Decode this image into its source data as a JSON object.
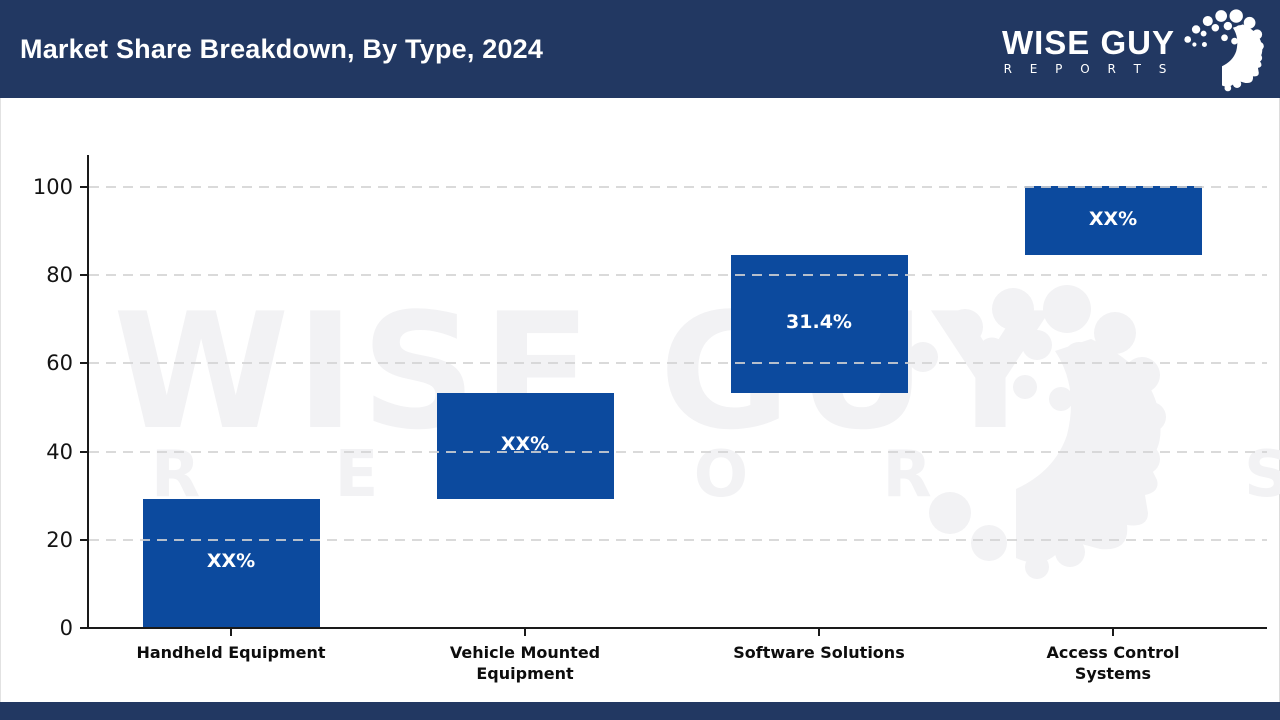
{
  "header": {
    "title": "Market Share Breakdown, By Type, 2024",
    "bg_color": "#223862",
    "logo": {
      "wordmark": "WISE GUY",
      "subtext": "R E P O R T S",
      "icon": "dotted-head-profile"
    }
  },
  "watermark": {
    "wordmark": "WISE GUY",
    "subtext": "R E P O R T S"
  },
  "footer": {
    "bg_color": "#223862"
  },
  "chart_data": {
    "type": "waterfall",
    "title": "Market Share Breakdown, By Type, 2024",
    "xlabel": "",
    "ylabel": "",
    "ylim": [
      0,
      107
    ],
    "grid": true,
    "grid_style": "dashed",
    "bar_color": "#0c4a9e",
    "bar_label_color": "#ffffff",
    "axis_color": "#1a1a1a",
    "y_ticks": [
      0,
      20,
      40,
      60,
      80,
      100
    ],
    "bars": [
      {
        "category_lines": [
          "Handheld Equipment"
        ],
        "start": 0,
        "end": 29,
        "label": "XX%"
      },
      {
        "category_lines": [
          "Vehicle Mounted",
          "Equipment"
        ],
        "start": 29,
        "end": 53,
        "label": "XX%"
      },
      {
        "category_lines": [
          "Software Solutions"
        ],
        "start": 53,
        "end": 84.4,
        "label": "31.4%"
      },
      {
        "category_lines": [
          "Access Control",
          "Systems"
        ],
        "start": 84.4,
        "end": 100,
        "label": "XX%"
      }
    ]
  }
}
